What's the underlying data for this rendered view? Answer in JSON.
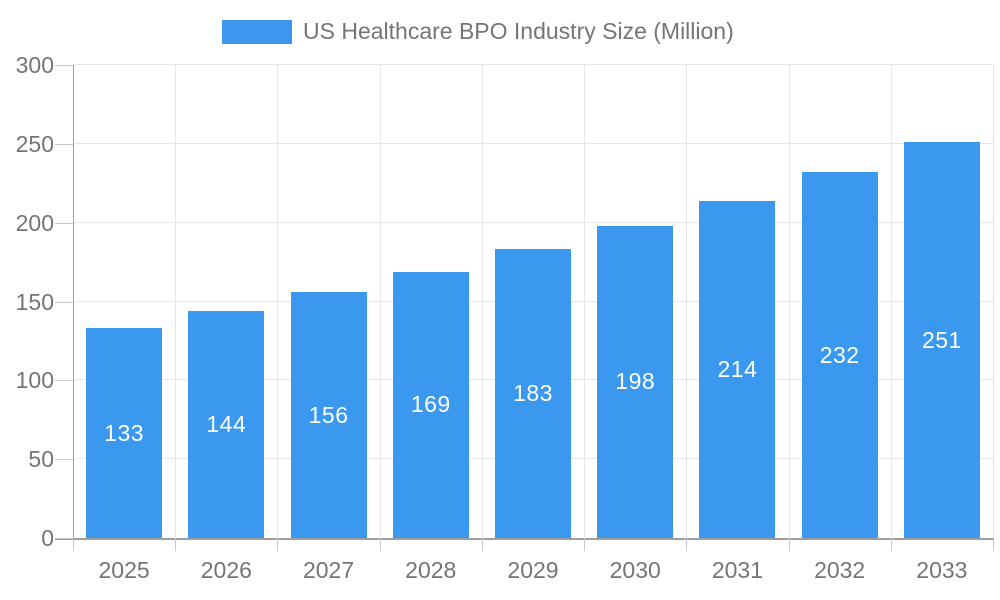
{
  "chart_data": {
    "type": "bar",
    "title": "US Healthcare BPO Industry Size (Million)",
    "categories": [
      "2025",
      "2026",
      "2027",
      "2028",
      "2029",
      "2030",
      "2031",
      "2032",
      "2033"
    ],
    "values": [
      133,
      144,
      156,
      169,
      183,
      198,
      214,
      232,
      251
    ],
    "xlabel": "",
    "ylabel": "",
    "ylim": [
      0,
      300
    ],
    "yticks": [
      0,
      50,
      100,
      150,
      200,
      250,
      300
    ],
    "grid": true,
    "legend_position": "top",
    "data_labels_position": "center-inside"
  },
  "colors": {
    "bar": "#3A99EE",
    "bar_label": "#FFFFFF",
    "axis": "#9E9E9E",
    "grid": "#E6E6E6",
    "tick": "#C9C9C9",
    "text": "#757575",
    "background": "#FFFFFF"
  }
}
